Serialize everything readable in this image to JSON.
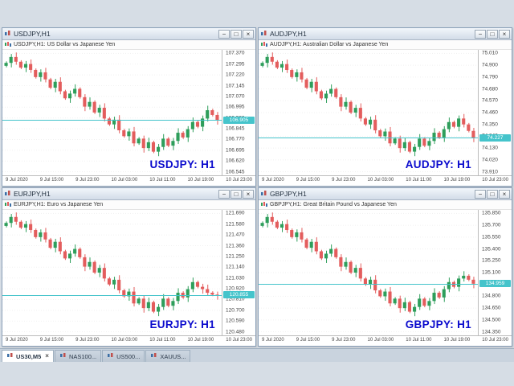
{
  "ui": {
    "up_color": "#2e9e5b",
    "down_color": "#e35d5d",
    "teal_color": "#45c4cb",
    "watermark_blue": "#0a0acd",
    "minimize_glyph": "−",
    "maximize_glyph": "□",
    "close_glyph": "×"
  },
  "taskbar": {
    "tabs": [
      {
        "label": "US30,M5",
        "active": true,
        "close_glyph": "×"
      },
      {
        "label": "NAS100...",
        "active": false
      },
      {
        "label": "US500...",
        "active": false
      },
      {
        "label": "XAUUS...",
        "active": false
      }
    ]
  },
  "chart_data": [
    {
      "type": "candlestick",
      "symbol": "USDJPY",
      "timeframe": "H1",
      "window_title": "USDJPY,H1",
      "info_label": "USDJPY,H1: US Dollar vs Japanese Yen",
      "big_label": "USDJPY: H1",
      "axis_min": 106.545,
      "axis_max": 107.37,
      "price_labels": [
        "107.370",
        "107.295",
        "107.220",
        "107.145",
        "107.070",
        "106.995",
        "106.920",
        "106.845",
        "106.770",
        "106.695",
        "106.620",
        "106.545"
      ],
      "time_labels": [
        "9 Jul 2020",
        "9 Jul 15:00",
        "9 Jul 23:00",
        "10 Jul 03:00",
        "10 Jul 11:00",
        "10 Jul 19:00",
        "10 Jul 23:00"
      ],
      "current_price": 106.905,
      "current_label": "106.905",
      "closes": [
        107.304,
        107.345,
        107.312,
        107.271,
        107.296,
        107.255,
        107.205,
        107.238,
        107.189,
        107.131,
        107.172,
        107.106,
        107.057,
        107.09,
        107.123,
        107.065,
        106.999,
        107.032,
        106.958,
        106.991,
        106.916,
        106.875,
        106.908,
        106.834,
        106.793,
        106.826,
        106.743,
        106.776,
        106.71,
        106.751,
        106.685,
        106.718,
        106.776,
        106.727,
        106.76,
        106.817,
        106.784,
        106.842,
        106.892,
        106.859,
        106.916,
        106.974,
        106.941,
        106.905
      ]
    },
    {
      "type": "candlestick",
      "symbol": "AUDJPY",
      "timeframe": "H1",
      "window_title": "AUDJPY,H1",
      "info_label": "AUDJPY,H1: Australian Dollar vs Japanese Yen",
      "big_label": "AUDJPY: H1",
      "axis_min": 73.91,
      "axis_max": 75.01,
      "price_labels": [
        "75.010",
        "74.900",
        "74.790",
        "74.680",
        "74.570",
        "74.460",
        "74.350",
        "74.240",
        "74.130",
        "74.020",
        "73.910"
      ],
      "time_labels": [
        "9 Jul 2020",
        "9 Jul 15:00",
        "9 Jul 23:00",
        "10 Jul 03:00",
        "10 Jul 11:00",
        "10 Jul 19:00",
        "10 Jul 23:00"
      ],
      "current_price": 74.227,
      "current_label": "74.227",
      "closes": [
        74.922,
        74.977,
        74.933,
        74.878,
        74.911,
        74.856,
        74.79,
        74.834,
        74.768,
        74.691,
        74.746,
        74.658,
        74.592,
        74.636,
        74.68,
        74.603,
        74.515,
        74.559,
        74.46,
        74.504,
        74.405,
        74.35,
        74.394,
        74.295,
        74.24,
        74.284,
        74.174,
        74.218,
        74.13,
        74.185,
        74.097,
        74.141,
        74.218,
        74.152,
        74.196,
        74.273,
        74.229,
        74.306,
        74.372,
        74.328,
        74.405,
        74.35,
        74.29,
        74.227
      ]
    },
    {
      "type": "candlestick",
      "symbol": "EURJPY",
      "timeframe": "H1",
      "window_title": "EURJPY,H1",
      "info_label": "EURJPY,H1: Euro vs Japanese Yen",
      "big_label": "EURJPY: H1",
      "axis_min": 120.48,
      "axis_max": 121.69,
      "price_labels": [
        "121.690",
        "121.580",
        "121.470",
        "121.360",
        "121.250",
        "121.140",
        "121.030",
        "120.920",
        "120.810",
        "120.700",
        "120.590",
        "120.480"
      ],
      "time_labels": [
        "9 Jul 2020",
        "9 Jul 15:00",
        "9 Jul 23:00",
        "10 Jul 03:00",
        "10 Jul 11:00",
        "10 Jul 19:00",
        "10 Jul 23:00"
      ],
      "current_price": 120.855,
      "current_label": "120.855",
      "closes": [
        121.593,
        121.654,
        121.605,
        121.545,
        121.581,
        121.521,
        121.448,
        121.496,
        121.424,
        121.339,
        121.4,
        121.303,
        121.23,
        121.279,
        121.327,
        121.242,
        121.146,
        121.194,
        121.085,
        121.133,
        121.025,
        120.964,
        121.012,
        120.904,
        120.843,
        120.891,
        120.77,
        120.819,
        120.722,
        120.783,
        120.686,
        120.734,
        120.819,
        120.746,
        120.795,
        120.879,
        120.831,
        120.916,
        120.988,
        120.94,
        120.916,
        120.879,
        120.86,
        120.855
      ]
    },
    {
      "type": "candlestick",
      "symbol": "GBPJPY",
      "timeframe": "H1",
      "window_title": "GBPJPY,H1",
      "info_label": "GBPJPY,H1: Great Britain Pound vs Japanese Yen",
      "big_label": "GBPJPY: H1",
      "axis_min": 134.35,
      "axis_max": 135.85,
      "price_labels": [
        "135.850",
        "135.700",
        "135.550",
        "135.400",
        "135.250",
        "135.100",
        "134.950",
        "134.800",
        "134.650",
        "134.500",
        "134.350"
      ],
      "time_labels": [
        "9 Jul 2020",
        "9 Jul 15:00",
        "9 Jul 23:00",
        "10 Jul 03:00",
        "10 Jul 11:00",
        "10 Jul 19:00",
        "10 Jul 23:00"
      ],
      "current_price": 134.959,
      "current_label": "134.959",
      "closes": [
        135.73,
        135.805,
        135.745,
        135.67,
        135.715,
        135.64,
        135.55,
        135.61,
        135.52,
        135.415,
        135.49,
        135.37,
        135.28,
        135.34,
        135.4,
        135.295,
        135.175,
        135.235,
        135.1,
        135.16,
        135.025,
        134.95,
        135.01,
        134.875,
        134.8,
        134.86,
        134.71,
        134.77,
        134.65,
        134.725,
        134.605,
        134.665,
        134.77,
        134.68,
        134.74,
        134.845,
        134.785,
        134.89,
        134.98,
        134.92,
        135.025,
        135.06,
        135.01,
        134.959
      ]
    }
  ]
}
